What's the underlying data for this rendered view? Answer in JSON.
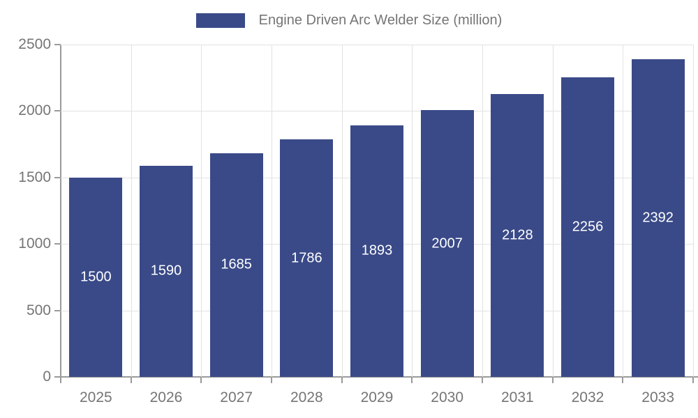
{
  "legend": {
    "series_label": "Engine Driven Arc Welder Size (million)"
  },
  "colors": {
    "bar_fill": "#3a4a88",
    "grid_line": "#e2e2e2",
    "axis_line": "#9a9a9a",
    "tick_label": "#757575",
    "bar_value_label": "#ffffff",
    "legend_text": "#757575",
    "background": "#ffffff"
  },
  "chart_data": {
    "type": "bar",
    "title": "Engine Driven Arc Welder Size (million)",
    "categories": [
      "2025",
      "2026",
      "2027",
      "2028",
      "2029",
      "2030",
      "2031",
      "2032",
      "2033"
    ],
    "series": [
      {
        "name": "Engine Driven Arc Welder Size (million)",
        "values": [
          1500,
          1590,
          1685,
          1786,
          1893,
          2007,
          2128,
          2256,
          2392
        ]
      }
    ],
    "values": [
      1500,
      1590,
      1685,
      1786,
      1893,
      2007,
      2128,
      2256,
      2392
    ],
    "xlabel": "",
    "ylabel": "",
    "ylim": [
      0,
      2500
    ],
    "yticks": [
      0,
      500,
      1000,
      1500,
      2000,
      2500
    ],
    "grid": "on",
    "legend_position": "top",
    "value_label_position": "inside-center"
  }
}
